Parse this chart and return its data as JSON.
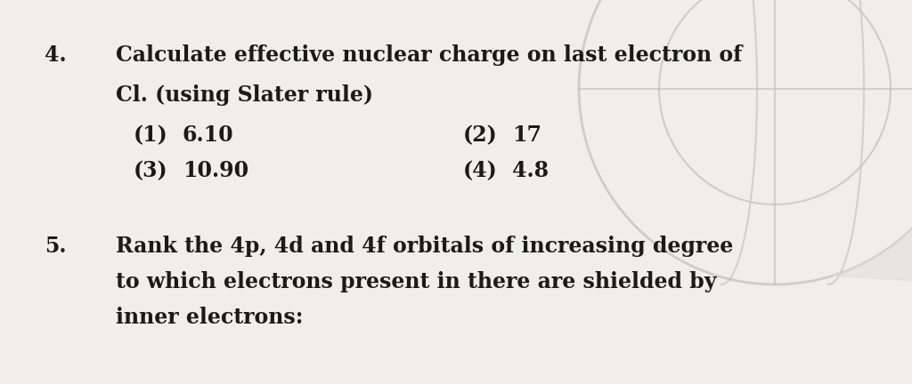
{
  "bg_color": "#f0eeea",
  "text_color": "#1a1a1a",
  "watermark_color": "#c8c4bc",
  "q4_number": "4.",
  "q4_line1": "Calculate effective nuclear charge on last electron of",
  "q4_line2": "Cl. (using Slater rule)",
  "q4_opt1_label": "(1)",
  "q4_opt1_val": "6.10",
  "q4_opt2_label": "(2)",
  "q4_opt2_val": "17",
  "q4_opt3_label": "(3)",
  "q4_opt3_val": "10.90",
  "q4_opt4_label": "(4)",
  "q4_opt4_val": "4.8",
  "q5_number": "5.",
  "q5_line1": "Rank the 4p, 4d and 4f orbitals of increasing degree",
  "q5_line2": "to which electrons present in there are shielded by",
  "q5_line3": "inner electrons:",
  "font_size": 17
}
